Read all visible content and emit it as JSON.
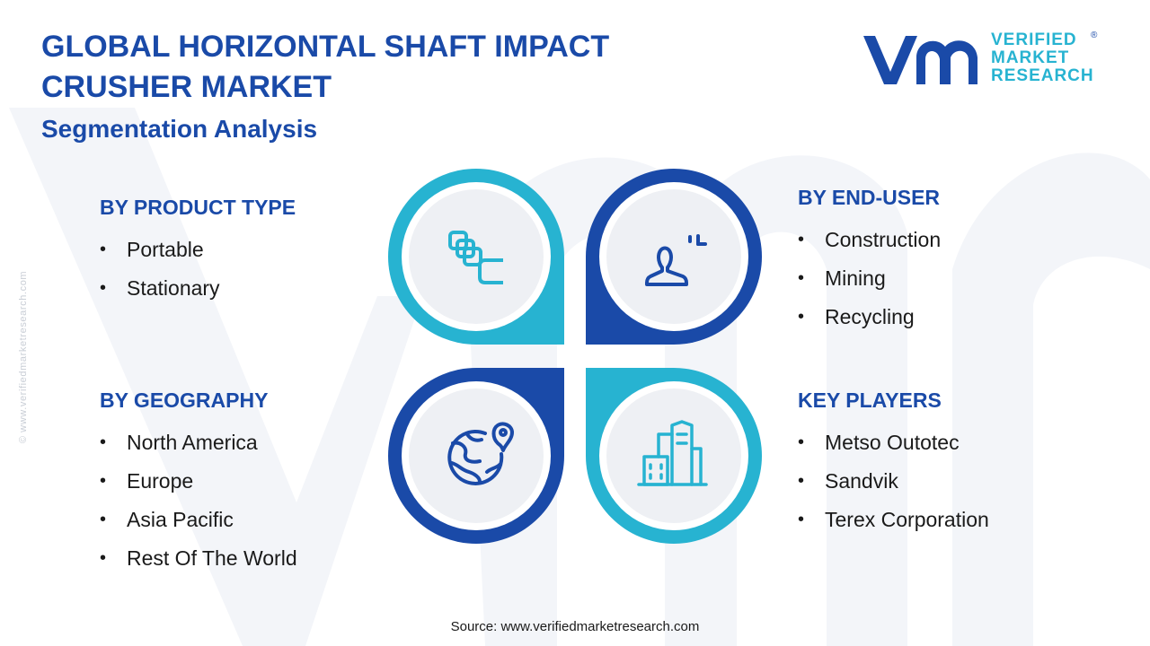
{
  "header": {
    "title": "GLOBAL HORIZONTAL SHAFT IMPACT CRUSHER MARKET",
    "subtitle": "Segmentation Analysis"
  },
  "logo": {
    "line1": "VERIFIED",
    "line2": "MARKET",
    "line3": "RESEARCH",
    "registered": "®"
  },
  "watermark_url": "© www.verifiedmarketresearch.com",
  "segments": {
    "product_type": {
      "heading": "BY PRODUCT TYPE",
      "items": [
        "Portable",
        "Stationary"
      ],
      "icon": "layers-icon"
    },
    "end_user": {
      "heading": "BY END-USER",
      "items": [
        "Construction",
        "Mining",
        "Recycling"
      ],
      "icon": "user-icon"
    },
    "geography": {
      "heading": "BY GEOGRAPHY",
      "items": [
        "North America",
        "Europe",
        "Asia Pacific",
        "Rest Of The World"
      ],
      "icon": "globe-location-icon"
    },
    "key_players": {
      "heading": "KEY PLAYERS",
      "items": [
        "Metso Outotec",
        "Sandvik",
        "Terex Corporation"
      ],
      "icon": "buildings-icon"
    }
  },
  "source": "Source: www.verifiedmarketresearch.com",
  "colors": {
    "primary_blue": "#1a4aa8",
    "accent_cyan": "#27b3d1",
    "circle_fill": "#eef0f4",
    "watermark": "#f3f5f9"
  }
}
